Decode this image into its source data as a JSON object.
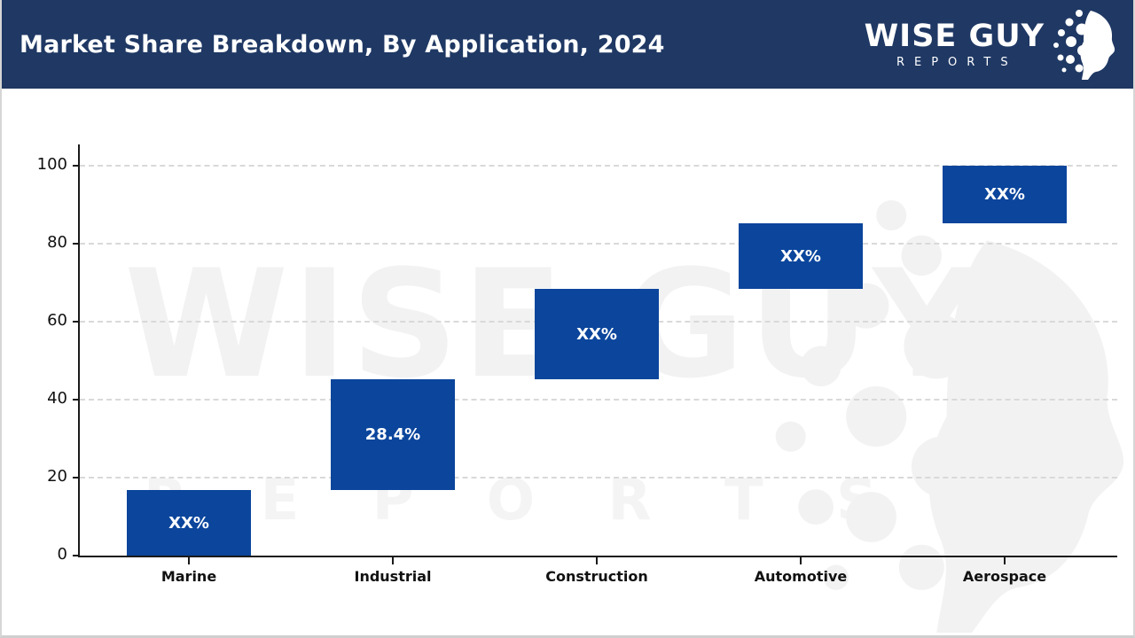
{
  "header": {
    "title": "Market Share Breakdown, By Application, 2024",
    "bg_color": "#1f3864",
    "logo": {
      "line1": "WISE GUY",
      "line2": "REPORTS"
    }
  },
  "watermark": {
    "line1": "WISE GUY",
    "line2": "R E P O R T S"
  },
  "chart_data": {
    "type": "bar",
    "subtype": "waterfall",
    "title": "Market Share Breakdown, By Application, 2024",
    "xlabel": "",
    "ylabel": "",
    "categories": [
      "Marine",
      "Industrial",
      "Construction",
      "Automotive",
      "Aerospace"
    ],
    "segments": [
      {
        "category": "Marine",
        "start": 0,
        "end": 16.8,
        "label": "XX%"
      },
      {
        "category": "Industrial",
        "start": 16.8,
        "end": 45.2,
        "label": "28.4%"
      },
      {
        "category": "Construction",
        "start": 45.2,
        "end": 68.3,
        "label": "XX%"
      },
      {
        "category": "Automotive",
        "start": 68.3,
        "end": 85.2,
        "label": "XX%"
      },
      {
        "category": "Aerospace",
        "start": 85.2,
        "end": 100,
        "label": "XX%"
      }
    ],
    "ylim": [
      0,
      100
    ],
    "yticks": [
      0,
      20,
      40,
      60,
      80,
      100
    ],
    "grid": "horizontal-dashed",
    "legend": "none",
    "colors": {
      "bar": "#0b459c",
      "bar_label": "#ffffff",
      "grid": "#d9d9d9",
      "axis": "#1a1a1a",
      "tick_label": "#111111",
      "watermark": "#f2f2f2"
    }
  }
}
